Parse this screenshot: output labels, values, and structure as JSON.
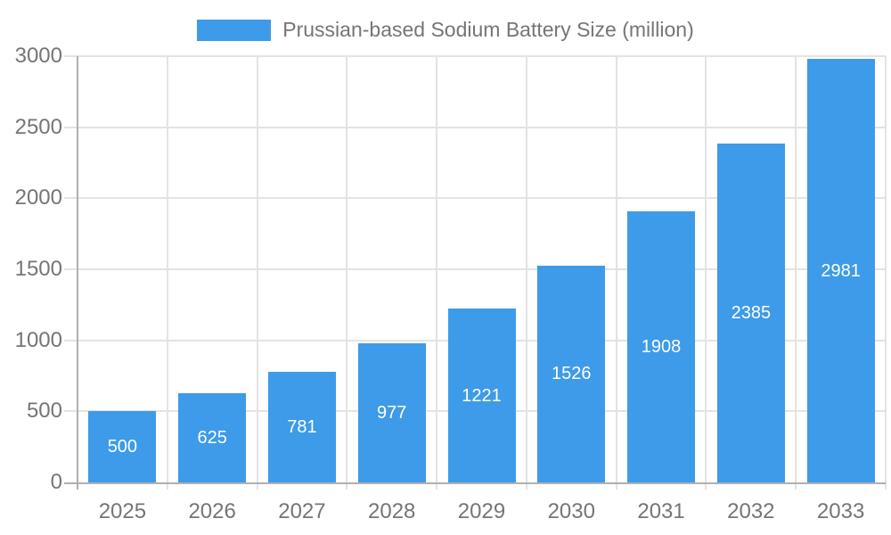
{
  "legend": {
    "label": "Prussian-based Sodium Battery Size (million)"
  },
  "chart_data": {
    "type": "bar",
    "title": "Prussian-based Sodium Battery Size (million)",
    "categories": [
      "2025",
      "2026",
      "2027",
      "2028",
      "2029",
      "2030",
      "2031",
      "2032",
      "2033"
    ],
    "values": [
      500,
      625,
      781,
      977,
      1221,
      1526,
      1908,
      2385,
      2981
    ],
    "xlabel": "",
    "ylabel": "",
    "ylim": [
      0,
      3000
    ],
    "yticks": [
      0,
      500,
      1000,
      1500,
      2000,
      2500,
      3000
    ],
    "grid": true,
    "legend_position": "top-center",
    "colors": {
      "bar": "#3D9BE9",
      "value_label": "#ffffff",
      "axis_text": "#757575",
      "gridline": "#e3e3e3",
      "axis_line": "#b0b0b0"
    }
  }
}
